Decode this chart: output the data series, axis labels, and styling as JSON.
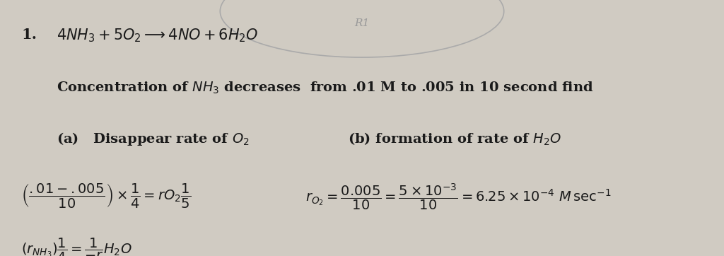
{
  "background_color": "#d0cbc2",
  "title_number": "1.",
  "text_color": "#1a1a1a",
  "font_size_eq": 15,
  "font_size_conc": 14,
  "font_size_parts": 14,
  "font_size_math": 13,
  "watermark_text": "R1",
  "watermark_color": "#999999"
}
